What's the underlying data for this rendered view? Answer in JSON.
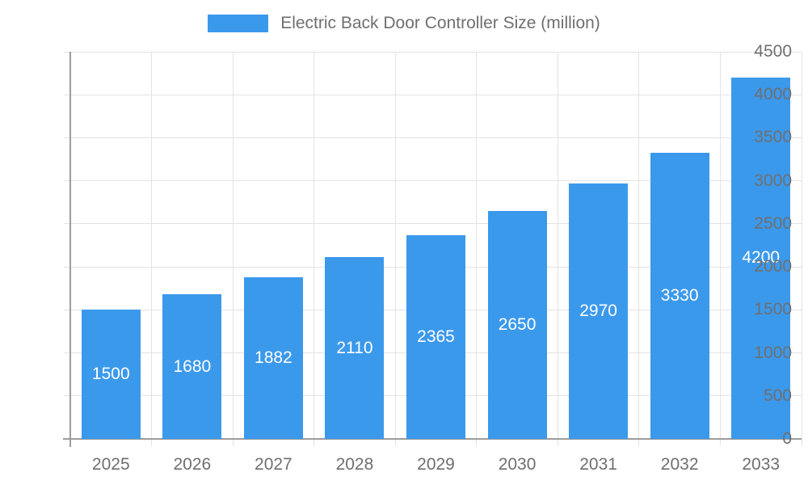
{
  "chart_data": {
    "type": "bar",
    "title": "Electric Back Door Controller Size (million)",
    "legend": {
      "label": "Electric Back Door Controller Size (million)",
      "position": "top"
    },
    "categories": [
      "2025",
      "2026",
      "2027",
      "2028",
      "2029",
      "2030",
      "2031",
      "2032",
      "2033"
    ],
    "values": [
      1500,
      1680,
      1882,
      2110,
      2365,
      2650,
      2970,
      3330,
      4200
    ],
    "bar_value_labels": [
      "1500",
      "1680",
      "1882",
      "2110",
      "2365",
      "2650",
      "2970",
      "3330",
      "4200"
    ],
    "xlabel": "",
    "ylabel": "",
    "ylim": [
      0,
      4500
    ],
    "ytick_step": 500,
    "yticks": [
      0,
      500,
      1000,
      1500,
      2000,
      2500,
      3000,
      3500,
      4000,
      4500
    ],
    "grid": true,
    "colors": {
      "bar": "#3B99EC",
      "bar_label": "#FFFFFF",
      "axis": "#9C9C9C",
      "grid": "#E3E3E3",
      "text": "#6F6F6F"
    }
  }
}
